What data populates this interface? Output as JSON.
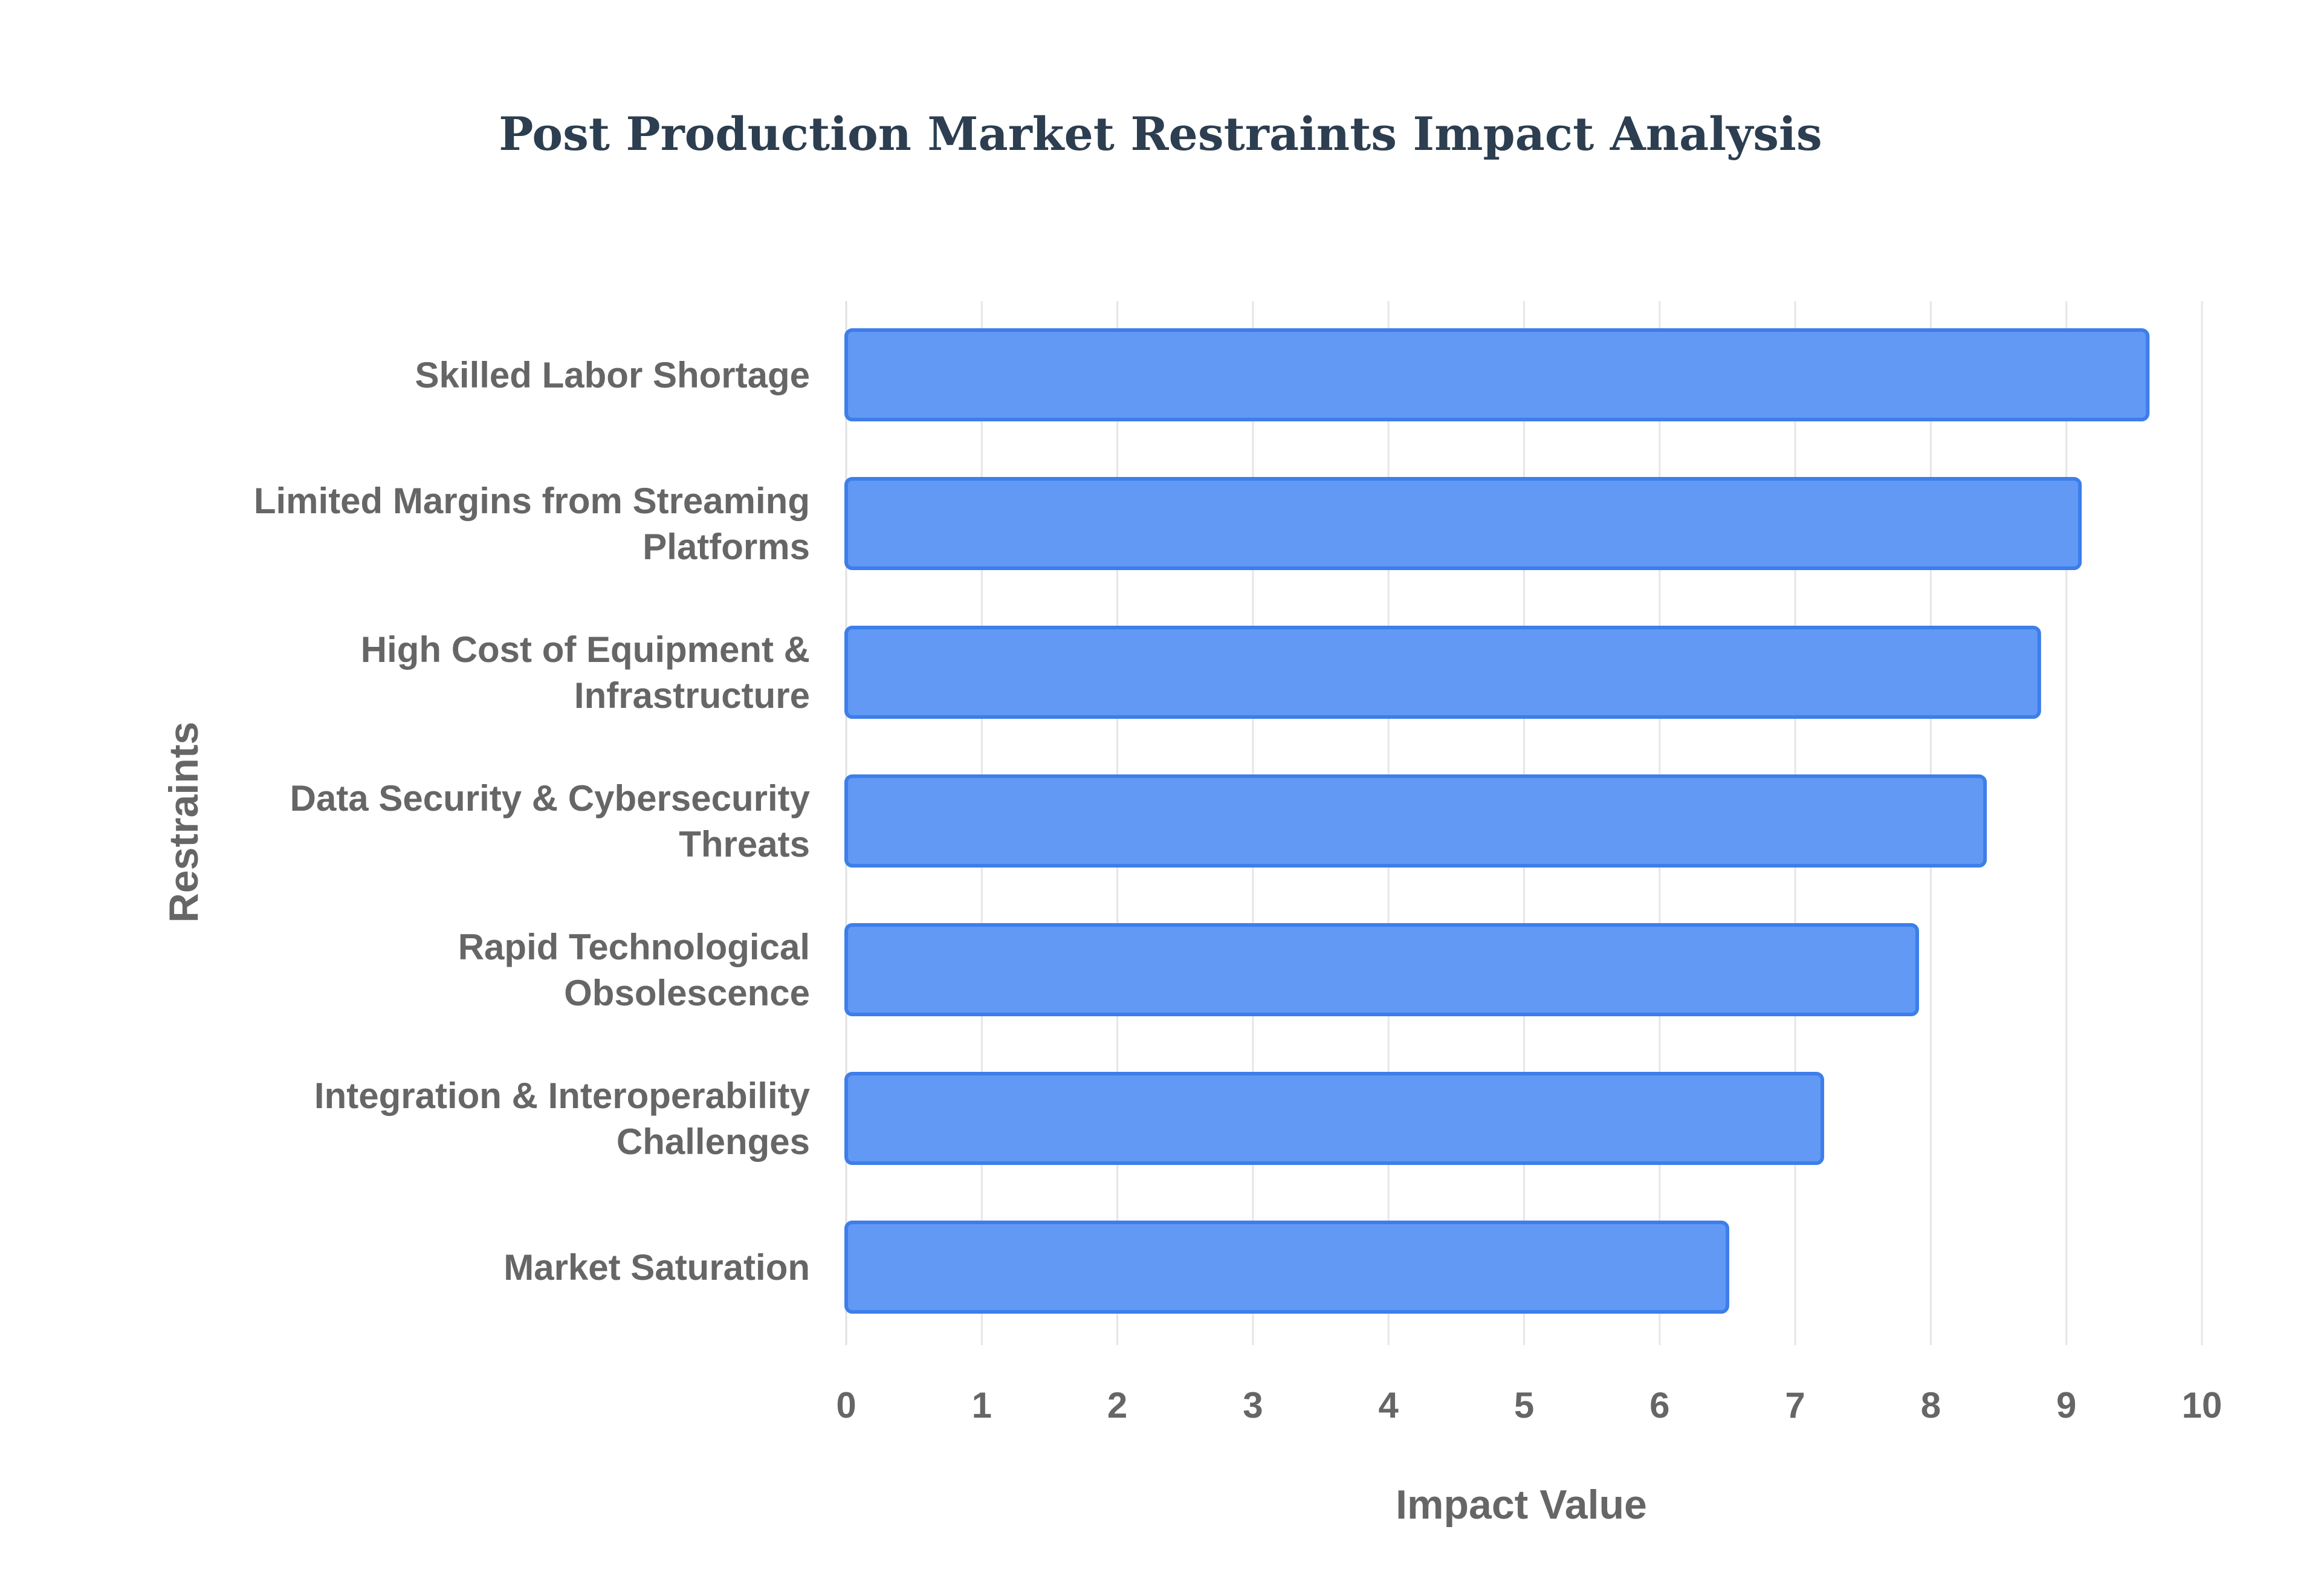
{
  "chart_data": {
    "type": "bar",
    "orientation": "horizontal",
    "title": "Post Production Market Restraints Impact Analysis",
    "xlabel": "Impact Value",
    "ylabel": "Restraints",
    "xlim": [
      0,
      10
    ],
    "xticks": [
      "0",
      "1",
      "2",
      "3",
      "4",
      "5",
      "6",
      "7",
      "8",
      "9",
      "10"
    ],
    "grid": true,
    "categories": [
      [
        "Skilled Labor Shortage"
      ],
      [
        "Limited Margins from Streaming",
        "Platforms"
      ],
      [
        "High Cost of Equipment &",
        "Infrastructure"
      ],
      [
        "Data Security & Cybersecurity",
        "Threats"
      ],
      [
        "Rapid Technological",
        "Obsolescence"
      ],
      [
        "Integration & Interoperability",
        "Challenges"
      ],
      [
        "Market Saturation"
      ]
    ],
    "values": [
      9.6,
      9.1,
      8.8,
      8.4,
      7.9,
      7.2,
      6.5
    ],
    "colors": {
      "bar_fill": "#6199f5",
      "bar_stroke": "#3d7eea",
      "title": "#2c3e50",
      "text": "#666666",
      "grid": "#e6e6e6"
    }
  }
}
